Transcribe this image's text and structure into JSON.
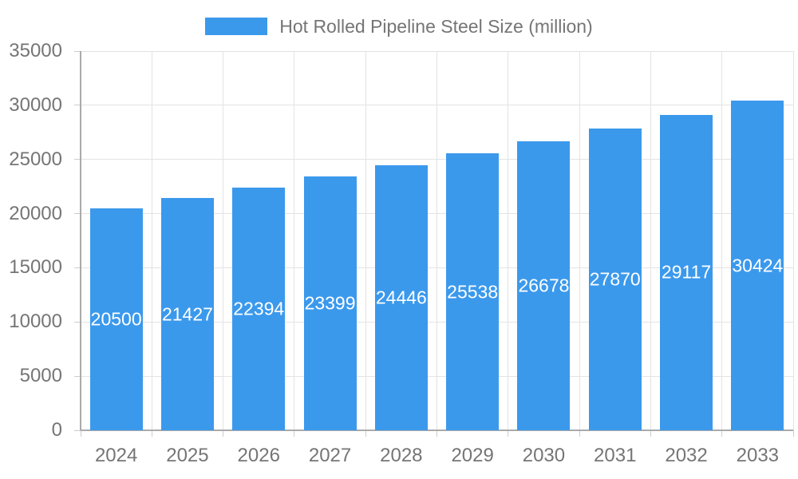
{
  "chart_data": {
    "type": "bar",
    "title": "",
    "legend": {
      "position": "top",
      "entries": [
        "Hot Rolled Pipeline Steel Size (million)"
      ]
    },
    "categories": [
      "2024",
      "2025",
      "2026",
      "2027",
      "2028",
      "2029",
      "2030",
      "2031",
      "2032",
      "2033"
    ],
    "series": [
      {
        "name": "Hot Rolled Pipeline Steel Size (million)",
        "values": [
          20500,
          21427,
          22394,
          23399,
          24446,
          25538,
          26678,
          27870,
          29117,
          30424
        ]
      }
    ],
    "xlabel": "",
    "ylabel": "",
    "ylim": [
      0,
      35000
    ],
    "ytick_step": 5000,
    "yticks": [
      0,
      5000,
      10000,
      15000,
      20000,
      25000,
      30000,
      35000
    ],
    "grid": true,
    "value_labels": "inside-center",
    "colors": {
      "bar": "#3B99EC",
      "grid": "#E3E3E3",
      "tick": "#CCCCCC",
      "axis": "#AAAAAA",
      "text": "#757575",
      "value_label": "#FFFFFF",
      "background": "#FFFFFF"
    }
  }
}
